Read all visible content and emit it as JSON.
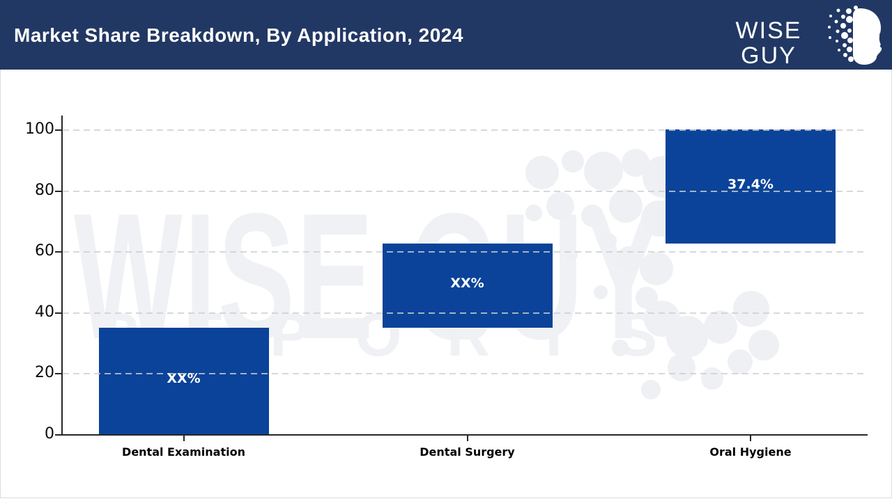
{
  "header": {
    "title": "Market Share Breakdown, By Application, 2024",
    "logo": {
      "primary": "WISE GUY",
      "secondary": "REPORTS"
    }
  },
  "watermark": {
    "primary": "WISE GUY",
    "secondary": "REPORTS"
  },
  "chart_data": {
    "type": "bar",
    "subtype": "waterfall",
    "title": "Market Share Breakdown, By Application, 2024",
    "categories": [
      "Dental Examination",
      "Dental Surgery",
      "Oral Hygiene"
    ],
    "bars": [
      {
        "category": "Dental Examination",
        "start": 0,
        "end": 35,
        "label": "XX%"
      },
      {
        "category": "Dental Surgery",
        "start": 35,
        "end": 62.6,
        "label": "XX%"
      },
      {
        "category": "Oral Hygiene",
        "start": 62.6,
        "end": 100,
        "label": "37.4%"
      }
    ],
    "xlabel": "",
    "ylabel": "",
    "ylim": [
      0,
      100
    ],
    "yticks": [
      0,
      20,
      40,
      60,
      80,
      100
    ],
    "grid": "horizontal-dashed",
    "legend": "none",
    "bar_color": "#0a4399",
    "bar_label_color": "#ffffff"
  },
  "colors": {
    "header_bg": "#223864",
    "bar": "#0a4399",
    "gridline": "#cccccc",
    "watermark": "#f0f1f4",
    "axis": "#262626"
  }
}
